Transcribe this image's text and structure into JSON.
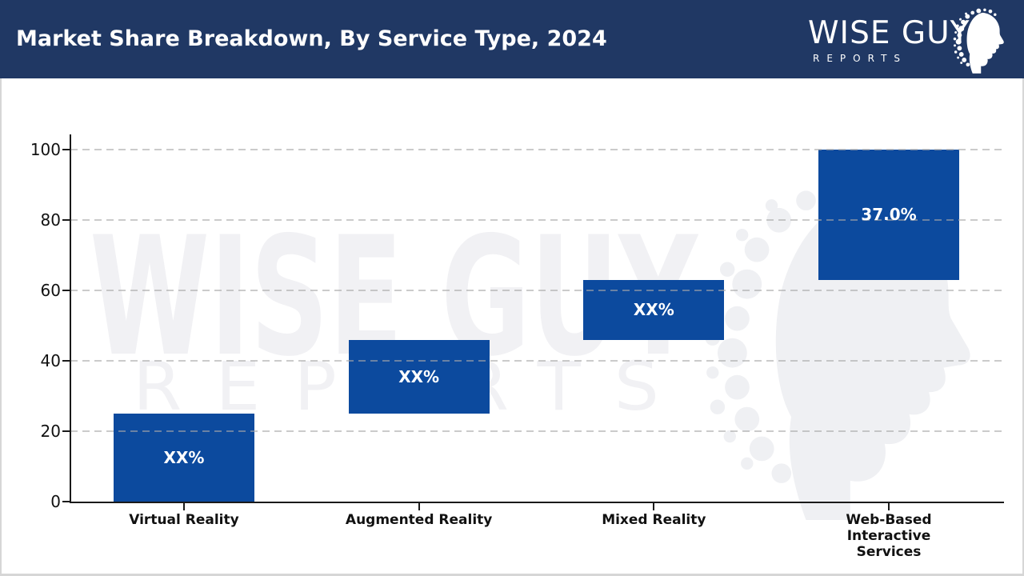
{
  "header": {
    "title": "Market Share Breakdown, By Service Type, 2024"
  },
  "brand": {
    "name": "WISE GUY",
    "tagline": "REPORTS"
  },
  "watermark": {
    "line1": "WISE GUY",
    "line2": "REPORTS"
  },
  "colors": {
    "header_bg": "#203864",
    "title_text": "#ffffff",
    "bar_fill": "#0c4a9e",
    "bar_label_text": "#ffffff",
    "grid_line": "#c9c9c9",
    "axis_line": "#1a1a1a",
    "tick_text": "#111111",
    "watermark_gray": "#f1f1f4",
    "figure_border": "#d6d6d6"
  },
  "chart_data": {
    "type": "bar",
    "subtype": "waterfall",
    "title": "Market Share Breakdown, By Service Type, 2024",
    "unit": "%",
    "categories": [
      "Virtual Reality",
      "Augmented Reality",
      "Mixed Reality",
      "Web-Based Interactive Services"
    ],
    "category_label_lines": [
      [
        "Virtual Reality"
      ],
      [
        "Augmented Reality"
      ],
      [
        "Mixed Reality"
      ],
      [
        "Web-Based",
        "Interactive",
        "Services"
      ]
    ],
    "segments": [
      {
        "category": "Virtual Reality",
        "start": 0,
        "end": 25,
        "value": 25,
        "label": "XX%"
      },
      {
        "category": "Augmented Reality",
        "start": 25,
        "end": 46,
        "value": 21,
        "label": "XX%"
      },
      {
        "category": "Mixed Reality",
        "start": 46,
        "end": 63,
        "value": 17,
        "label": "XX%"
      },
      {
        "category": "Web-Based Interactive Services",
        "start": 63,
        "end": 100,
        "value": 37,
        "label": "37.0%"
      }
    ],
    "yticks": [
      0,
      20,
      40,
      60,
      80,
      100
    ],
    "ylim": [
      0,
      104
    ],
    "xlabel": "",
    "ylabel": "",
    "grid": "dashed-horizontal",
    "legend": "none"
  }
}
